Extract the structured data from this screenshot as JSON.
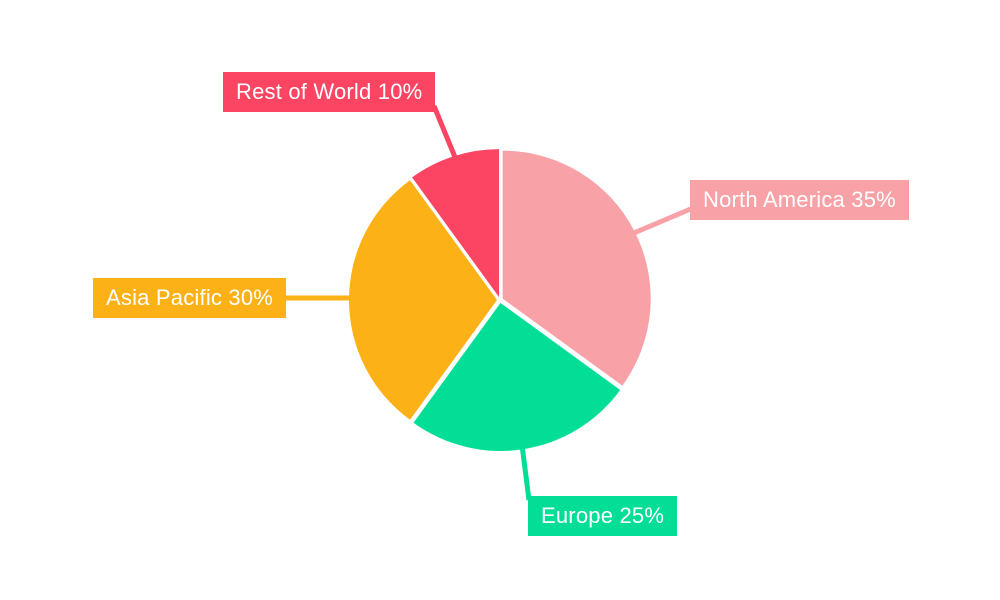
{
  "chart_data": {
    "type": "pie",
    "title": "",
    "background": "#FFFFFF",
    "label_text_color": "#FFFFFF",
    "start_angle_deg": 0,
    "direction": "clockwise",
    "categories": [
      "North America",
      "Europe",
      "Asia Pacific",
      "Rest of World"
    ],
    "values": [
      35,
      25,
      30,
      10
    ],
    "slices": [
      {
        "label": "North America",
        "value": 35,
        "display_label": "North America 35%",
        "color": "#F8A1A7"
      },
      {
        "label": "Europe",
        "value": 25,
        "display_label": "Europe 25%",
        "color": "#03DE97"
      },
      {
        "label": "Asia Pacific",
        "value": 30,
        "display_label": "Asia Pacific 30%",
        "color": "#FCB116"
      },
      {
        "label": "Rest of World",
        "value": 10,
        "display_label": "Rest of World 10%",
        "color": "#FB4563"
      }
    ]
  }
}
